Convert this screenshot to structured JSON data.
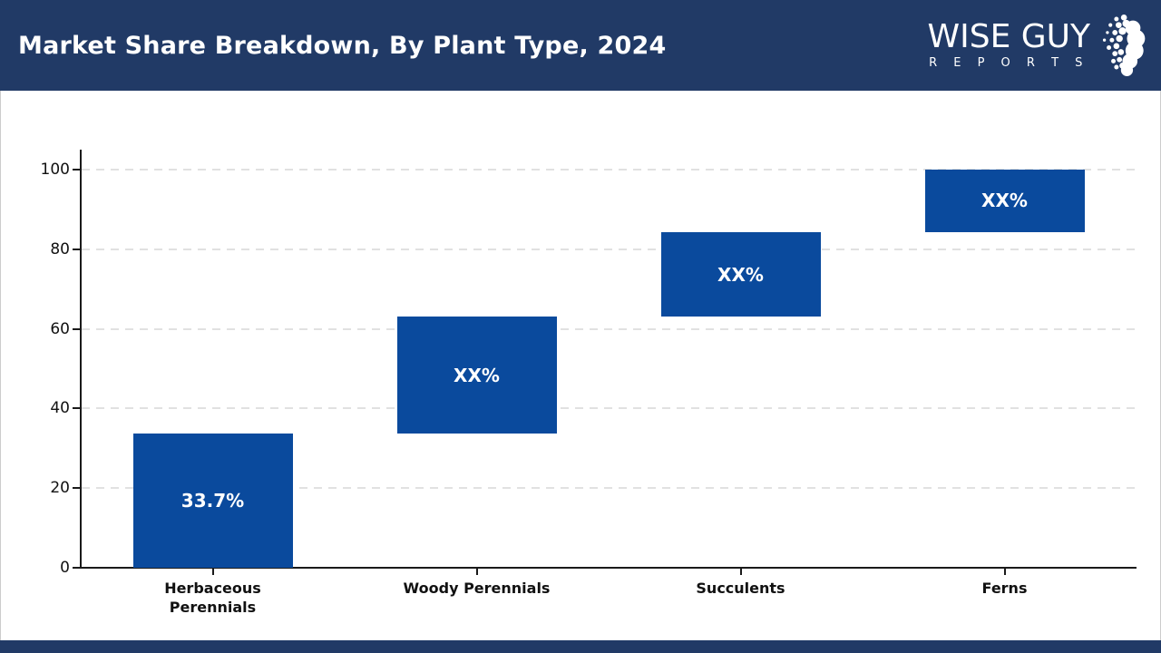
{
  "page": {
    "background": "#ffffff",
    "border_color": "#cccccc"
  },
  "header": {
    "background": "#213a66",
    "title": "Market Share Breakdown, By Plant Type, 2024",
    "title_color": "#ffffff",
    "logo": {
      "wordmark": "WISE GUY",
      "subtext": "R E P O R T S",
      "icon": "dotted-face-profile",
      "color": "#ffffff"
    }
  },
  "footer": {
    "background": "#213a66"
  },
  "watermark": {
    "wordmark": "WISE GUY",
    "subtext": "R E P O R T S",
    "icon": "dotted-face-profile",
    "color": "#f1f1f1"
  },
  "chart_data": {
    "type": "bar",
    "variant": "waterfall",
    "title": "Market Share Breakdown, By Plant Type, 2024",
    "categories": [
      "Herbaceous Perennials",
      "Woody Perennials",
      "Succulents",
      "Ferns"
    ],
    "category_lines": [
      [
        "Herbaceous",
        "Perennials"
      ],
      [
        "Woody Perennials"
      ],
      [
        "Succulents"
      ],
      [
        "Ferns"
      ]
    ],
    "series": [
      {
        "name": "Market Share (%)",
        "segments": [
          {
            "category": "Herbaceous Perennials",
            "start": 0,
            "end": 33.7,
            "label": "33.7%"
          },
          {
            "category": "Woody Perennials",
            "start": 33.7,
            "end": 63,
            "label": "XX%"
          },
          {
            "category": "Succulents",
            "start": 63,
            "end": 84.3,
            "label": "XX%"
          },
          {
            "category": "Ferns",
            "start": 84.3,
            "end": 100,
            "label": "XX%"
          }
        ]
      }
    ],
    "values_shown": [
      "33.7%",
      "XX%",
      "XX%",
      "XX%"
    ],
    "yticks": [
      0,
      20,
      40,
      60,
      80,
      100
    ],
    "ylim": [
      0,
      105
    ],
    "xlabel": "",
    "ylabel": "",
    "grid": "horizontal-dashed",
    "legend": "none",
    "bar_color": "#0a4a9d",
    "bar_label_color": "#ffffff",
    "axis_color": "#1a1a1a",
    "grid_color": "#e1e1e1",
    "tick_label_color": "#111111"
  }
}
